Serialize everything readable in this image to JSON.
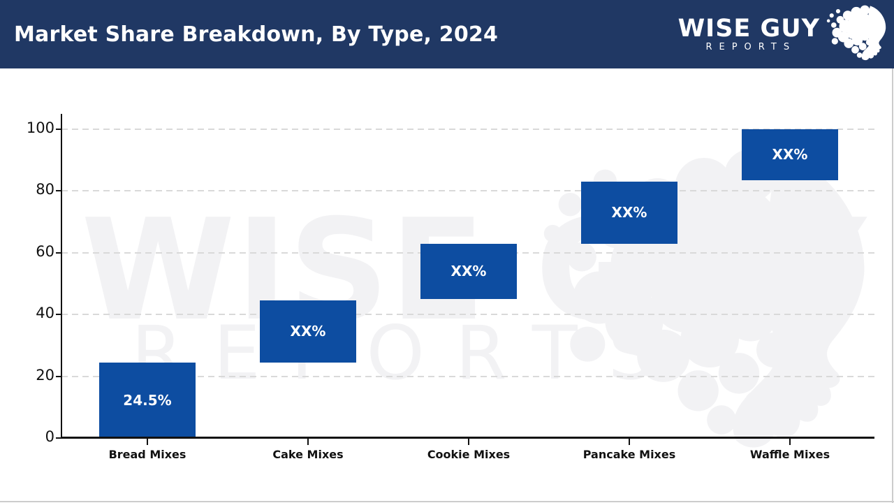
{
  "header": {
    "title": "Market Share Breakdown, By Type, 2024",
    "logo": {
      "line1": "WISE GUY",
      "line2": "REPORTS"
    }
  },
  "watermark": {
    "line1": "WISE GUY",
    "line2": "REPORTS"
  },
  "chart_data": {
    "type": "bar",
    "subtype": "waterfall",
    "title": "Market Share Breakdown, By Type, 2024",
    "xlabel": "",
    "ylabel": "",
    "categories": [
      "Bread Mixes",
      "Cake Mixes",
      "Cookie Mixes",
      "Pancake Mixes",
      "Waffle Mixes"
    ],
    "segments": [
      {
        "category": "Bread Mixes",
        "start": 0,
        "end": 24.5,
        "label": "24.5%"
      },
      {
        "category": "Cake Mixes",
        "start": 24.5,
        "end": 44.5,
        "label": "XX%"
      },
      {
        "category": "Cookie Mixes",
        "start": 45,
        "end": 63,
        "label": "XX%"
      },
      {
        "category": "Pancake Mixes",
        "start": 63,
        "end": 83,
        "label": "XX%"
      },
      {
        "category": "Waffle Mixes",
        "start": 83.5,
        "end": 100,
        "label": "XX%"
      }
    ],
    "yticks": [
      0,
      20,
      40,
      60,
      80,
      100
    ],
    "ylim": [
      0,
      105
    ],
    "grid": "horizontal-dashed",
    "legend": "none",
    "bar_color": "#0d4da1",
    "value_label_color": "#ffffff"
  },
  "colors": {
    "header_bg": "#203864",
    "bar": "#0d4da1",
    "grid": "#d9d9d9",
    "axis": "#111111",
    "watermark": "#f2f2f4",
    "frame_line": "#cccccc"
  }
}
